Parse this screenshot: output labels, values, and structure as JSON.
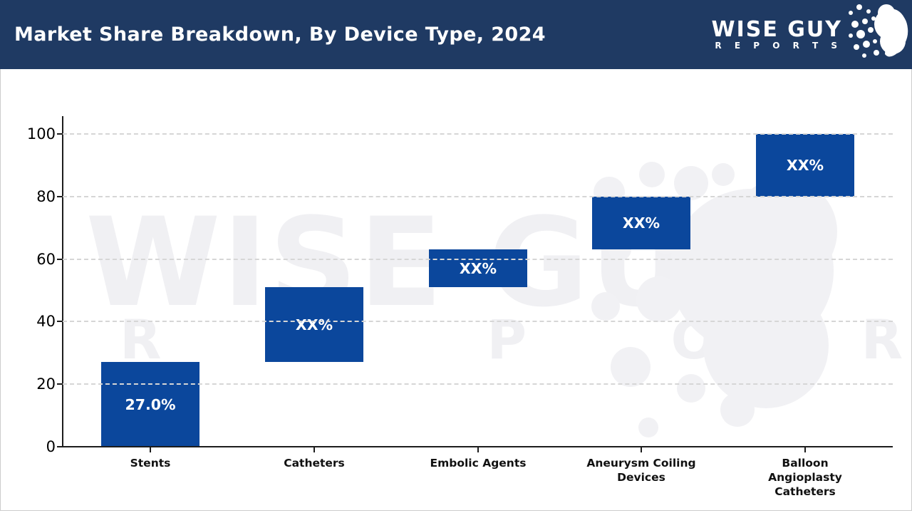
{
  "header": {
    "title": "Market Share Breakdown, By Device Type, 2024",
    "bg_color": "#1f3a63",
    "logo": {
      "line1": "WISE GUY",
      "line2": "R E P O R T S"
    }
  },
  "watermark": {
    "line1": "WISE GUY",
    "line2": "R E P O R T S"
  },
  "chart_data": {
    "type": "bar",
    "subtype": "waterfall",
    "title": "Market Share Breakdown, By Device Type, 2024",
    "xlabel": "",
    "ylabel": "",
    "ylim": [
      0,
      100
    ],
    "y_ticks": [
      0,
      20,
      40,
      60,
      80,
      100
    ],
    "grid": "horizontal-dashed",
    "bar_color": "#0b479c",
    "categories": [
      "Stents",
      "Catheters",
      "Embolic Agents",
      "Aneurysm Coiling\nDevices",
      "Balloon\nAngioplasty\nCatheters"
    ],
    "segments": [
      {
        "category": "Stents",
        "start": 0,
        "end": 27,
        "label": "27.0%"
      },
      {
        "category": "Catheters",
        "start": 27,
        "end": 51,
        "label": "XX%"
      },
      {
        "category": "Embolic Agents",
        "start": 51,
        "end": 63,
        "label": "XX%"
      },
      {
        "category": "Aneurysm Coiling Devices",
        "start": 63,
        "end": 80,
        "label": "XX%"
      },
      {
        "category": "Balloon Angioplasty Catheters",
        "start": 80,
        "end": 100,
        "label": "XX%"
      }
    ]
  }
}
